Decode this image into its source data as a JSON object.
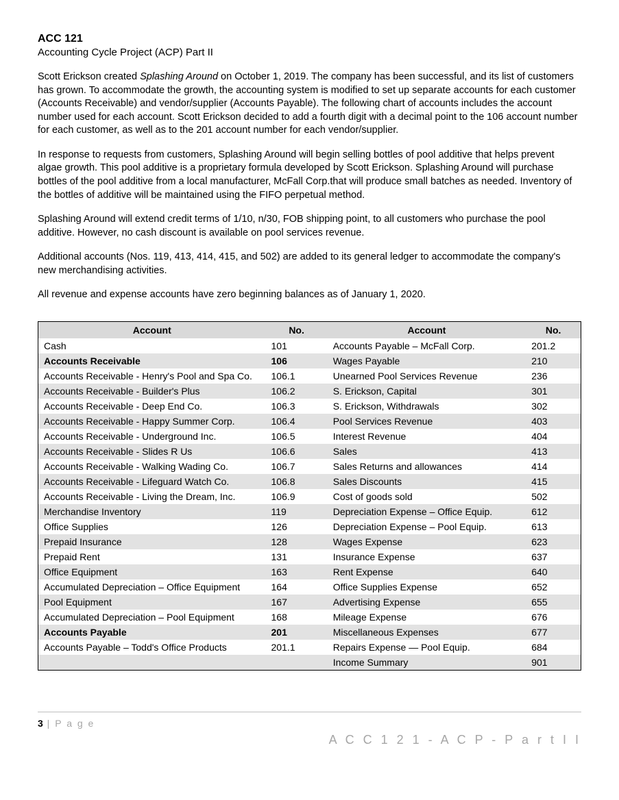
{
  "header": {
    "course_code": "ACC 121",
    "subtitle": "Accounting Cycle Project (ACP) Part II"
  },
  "paragraphs": {
    "p1_a": "Scott Erickson created ",
    "p1_b": "Splashing Around",
    "p1_c": " on October 1, 2019.  The company has been successful, and its list of customers has grown.  To accommodate the growth, the accounting system is modified to set up separate accounts for each customer (Accounts Receivable) and vendor/supplier (Accounts Payable).  The following chart of accounts includes the account number used for each account.  Scott Erickson decided to add a fourth digit with a decimal point to the 106 account number for each customer, as well as to the 201 account number for each vendor/supplier.",
    "p2": "In response to requests from customers, Splashing Around will begin selling bottles of pool additive that helps prevent algae growth.  This pool additive is a proprietary formula developed by Scott Erickson. Splashing Around will purchase bottles of the pool additive from a local manufacturer, McFall Corp.that will produce small batches as needed.  Inventory of the bottles of additive will be maintained using the FIFO perpetual method.",
    "p3": "Splashing Around will extend credit terms of 1/10, n/30, FOB shipping point, to all customers who purchase the pool additive.  However, no cash discount is available on pool services revenue.",
    "p4": "Additional accounts (Nos. 119, 413, 414, 415, and 502) are added to its general ledger to accommodate the company's new merchandising activities.",
    "p5": "All revenue and expense accounts have zero beginning balances as of January 1, 2020."
  },
  "table": {
    "header_account": "Account",
    "header_no": "No.",
    "colors": {
      "header_bg": "#d9d9d9",
      "alt_bg": "#e2e2e2",
      "border": "#000000"
    },
    "rows": [
      {
        "l_acct": "Cash",
        "l_no": "101",
        "r_acct": "Accounts Payable – McFall Corp.",
        "r_no": "201.2",
        "alt": false,
        "bold": false
      },
      {
        "l_acct": "Accounts Receivable",
        "l_no": "106",
        "r_acct": "Wages Payable",
        "r_no": "210",
        "alt": true,
        "bold": true,
        "bold_right": false
      },
      {
        "l_acct": "Accounts Receivable - Henry's Pool and Spa Co.",
        "l_no": "106.1",
        "r_acct": "Unearned Pool Services Revenue",
        "r_no": "236",
        "alt": false,
        "bold": false
      },
      {
        "l_acct": "Accounts Receivable - Builder's Plus",
        "l_no": "106.2",
        "r_acct": "S. Erickson, Capital",
        "r_no": "301",
        "alt": true,
        "bold": false
      },
      {
        "l_acct": "Accounts Receivable - Deep End Co.",
        "l_no": "106.3",
        "r_acct": "S. Erickson, Withdrawals",
        "r_no": "302",
        "alt": false,
        "bold": false
      },
      {
        "l_acct": "Accounts Receivable - Happy Summer Corp.",
        "l_no": "106.4",
        "r_acct": "Pool Services Revenue",
        "r_no": "403",
        "alt": true,
        "bold": false
      },
      {
        "l_acct": "Accounts Receivable - Underground Inc.",
        "l_no": "106.5",
        "r_acct": "Interest Revenue",
        "r_no": "404",
        "alt": false,
        "bold": false
      },
      {
        "l_acct": "Accounts Receivable - Slides R Us",
        "l_no": "106.6",
        "r_acct": "Sales",
        "r_no": "413",
        "alt": true,
        "bold": false
      },
      {
        "l_acct": "Accounts Receivable - Walking Wading Co.",
        "l_no": "106.7",
        "r_acct": "Sales Returns and allowances",
        "r_no": "414",
        "alt": false,
        "bold": false
      },
      {
        "l_acct": "Accounts Receivable - Lifeguard Watch Co.",
        "l_no": "106.8",
        "r_acct": "Sales Discounts",
        "r_no": "415",
        "alt": true,
        "bold": false
      },
      {
        "l_acct": "Accounts Receivable - Living the Dream, Inc.",
        "l_no": "106.9",
        "r_acct": "Cost of goods sold",
        "r_no": "502",
        "alt": false,
        "bold": false
      },
      {
        "l_acct": "Merchandise Inventory",
        "l_no": "119",
        "r_acct": "Depreciation Expense – Office Equip.",
        "r_no": "612",
        "alt": true,
        "bold": false
      },
      {
        "l_acct": "Office Supplies",
        "l_no": "126",
        "r_acct": "Depreciation Expense – Pool Equip.",
        "r_no": "613",
        "alt": false,
        "bold": false
      },
      {
        "l_acct": "Prepaid Insurance",
        "l_no": "128",
        "r_acct": "Wages Expense",
        "r_no": "623",
        "alt": true,
        "bold": false
      },
      {
        "l_acct": "Prepaid Rent",
        "l_no": "131",
        "r_acct": "Insurance Expense",
        "r_no": "637",
        "alt": false,
        "bold": false
      },
      {
        "l_acct": "Office Equipment",
        "l_no": "163",
        "r_acct": "Rent Expense",
        "r_no": "640",
        "alt": true,
        "bold": false
      },
      {
        "l_acct": "Accumulated Depreciation – Office Equipment",
        "l_no": "164",
        "r_acct": "Office Supplies Expense",
        "r_no": "652",
        "alt": false,
        "bold": false
      },
      {
        "l_acct": "Pool Equipment",
        "l_no": "167",
        "r_acct": "Advertising Expense",
        "r_no": "655",
        "alt": true,
        "bold": false
      },
      {
        "l_acct": "Accumulated Depreciation – Pool Equipment",
        "l_no": "168",
        "r_acct": "Mileage Expense",
        "r_no": "676",
        "alt": false,
        "bold": false
      },
      {
        "l_acct": "Accounts Payable",
        "l_no": "201",
        "r_acct": "Miscellaneous Expenses",
        "r_no": "677",
        "alt": true,
        "bold": true,
        "bold_right": false
      },
      {
        "l_acct": "Accounts Payable – Todd's Office Products",
        "l_no": "201.1",
        "r_acct": "Repairs Expense — Pool Equip.",
        "r_no": "684",
        "alt": false,
        "bold": false
      },
      {
        "l_acct": "",
        "l_no": "",
        "r_acct": "Income Summary",
        "r_no": "901",
        "alt": true,
        "bold": false
      }
    ]
  },
  "footer": {
    "page_number_bold": "3",
    "page_number_sep": " | ",
    "page_number_label": "P a g e",
    "right_text": "A C C   1 2 1 - A C P - P a r t   I I"
  }
}
